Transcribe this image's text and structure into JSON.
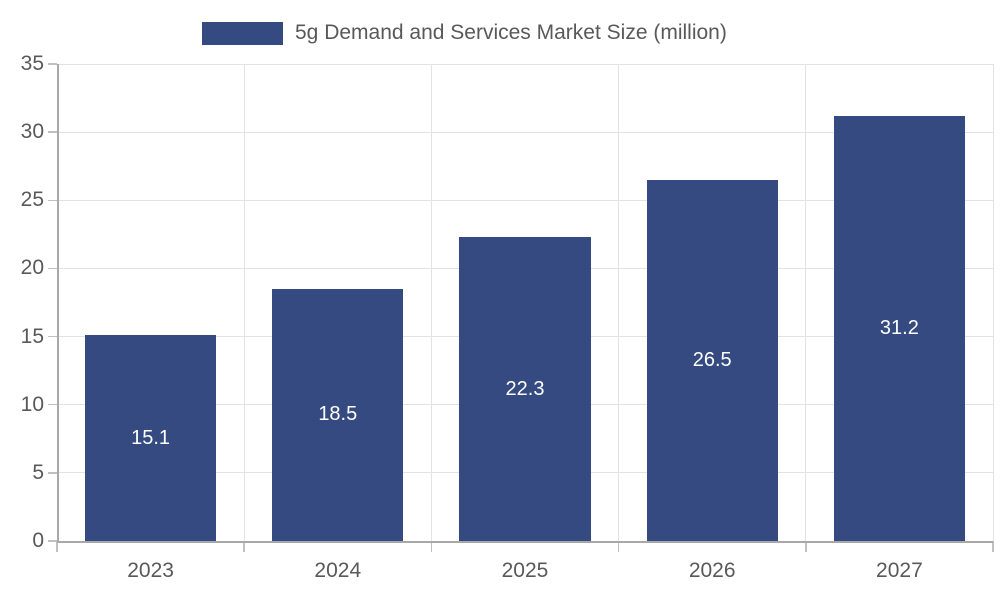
{
  "legend": {
    "label": "5g Demand and Services Market Size (million)",
    "swatch_color": "#354a80"
  },
  "chart_data": {
    "type": "bar",
    "title": "5g Demand and Services Market Size (million)",
    "categories": [
      "2023",
      "2024",
      "2025",
      "2026",
      "2027"
    ],
    "values": [
      15.1,
      18.5,
      22.3,
      26.5,
      31.2
    ],
    "value_labels": [
      "15.1",
      "18.5",
      "22.3",
      "26.5",
      "31.2"
    ],
    "xlabel": "",
    "ylabel": "",
    "ylim": [
      0,
      35
    ],
    "yticks": [
      0,
      5,
      10,
      15,
      20,
      25,
      30,
      35
    ],
    "grid": true,
    "legend_position": "top-center",
    "bar_color": "#354a80",
    "value_label_color": "#ffffff",
    "tick_label_color": "#595959",
    "gridline_color": "#e3e3e3",
    "axis_color": "#a8a8a8",
    "background_color": "#ffffff"
  }
}
